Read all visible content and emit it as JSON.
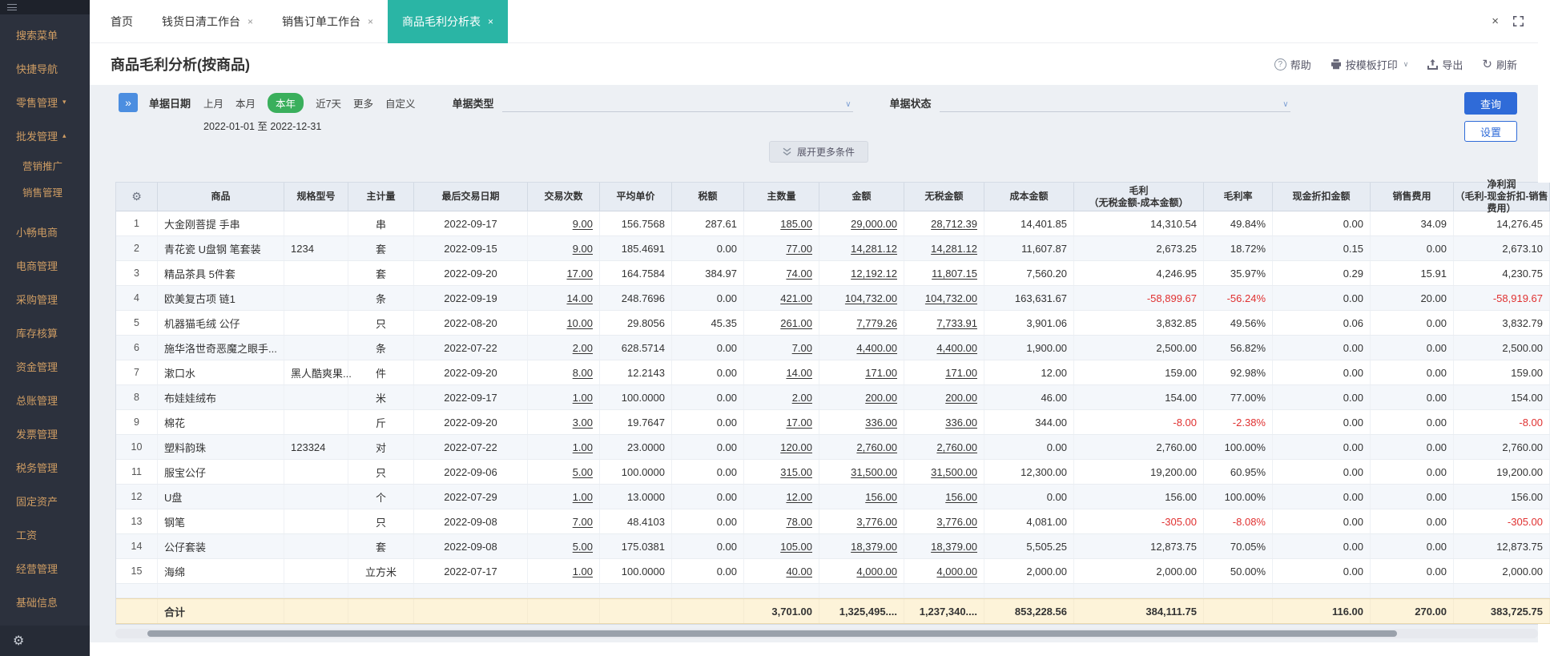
{
  "colors": {
    "accent-teal": "#2ab5a5",
    "accent-green": "#3aaf5c",
    "primary-blue": "#2f6bd8",
    "negative-red": "#e03131",
    "sidebar-bg": "#2c313d",
    "sidebar-text": "#cf9d63",
    "totals-bg": "#fdf3d9",
    "header-bg": "#e7ecf3"
  },
  "sidebar": {
    "items": [
      {
        "label": "搜索菜单",
        "type": "item"
      },
      {
        "label": "快捷导航",
        "type": "item"
      },
      {
        "label": "零售管理",
        "type": "group",
        "chevron": "down"
      },
      {
        "label": "批发管理",
        "type": "group",
        "chevron": "up",
        "active": true
      },
      {
        "label": "营销推广",
        "type": "sub"
      },
      {
        "label": "销售管理",
        "type": "sub"
      },
      {
        "label": "小畅电商",
        "type": "item"
      },
      {
        "label": "电商管理",
        "type": "item"
      },
      {
        "label": "采购管理",
        "type": "item"
      },
      {
        "label": "库存核算",
        "type": "item"
      },
      {
        "label": "资金管理",
        "type": "item"
      },
      {
        "label": "总账管理",
        "type": "item"
      },
      {
        "label": "发票管理",
        "type": "item"
      },
      {
        "label": "税务管理",
        "type": "item"
      },
      {
        "label": "固定资产",
        "type": "item"
      },
      {
        "label": "工资",
        "type": "item"
      },
      {
        "label": "经营管理",
        "type": "item"
      },
      {
        "label": "基础信息",
        "type": "item"
      }
    ]
  },
  "tabs": {
    "items": [
      {
        "label": "首页",
        "closable": false,
        "active": false
      },
      {
        "label": "钱货日清工作台",
        "closable": true,
        "active": false
      },
      {
        "label": "销售订单工作台",
        "closable": true,
        "active": false
      },
      {
        "label": "商品毛利分析表",
        "closable": true,
        "active": true
      }
    ]
  },
  "page": {
    "title": "商品毛利分析(按商品)",
    "toolbar": {
      "help": "帮助",
      "print": "按模板打印",
      "export": "导出",
      "refresh": "刷新"
    }
  },
  "filters": {
    "date_label": "单据日期",
    "date_options": [
      {
        "label": "上月",
        "active": false
      },
      {
        "label": "本月",
        "active": false
      },
      {
        "label": "本年",
        "active": true
      },
      {
        "label": "近7天",
        "active": false
      },
      {
        "label": "更多",
        "active": false
      },
      {
        "label": "自定义",
        "active": false
      }
    ],
    "date_range": "2022-01-01 至 2022-12-31",
    "doc_type_label": "单据类型",
    "doc_status_label": "单据状态",
    "query_button": "查询",
    "settings_button": "设置",
    "expand_more": "展开更多条件"
  },
  "table": {
    "columns": [
      "商品",
      "规格型号",
      "主计量",
      "最后交易日期",
      "交易次数",
      "平均单价",
      "税额",
      "主数量",
      "金额",
      "无税金额",
      "成本金额",
      "毛利\n（无税金额-成本金额）",
      "毛利率",
      "现金折扣金额",
      "销售费用",
      "净利润\n（毛利-现金折扣-销售费用）"
    ],
    "rows": [
      [
        "大金刚菩提 手串",
        "",
        "串",
        "2022-09-17",
        "9.00",
        "156.7568",
        "287.61",
        "185.00",
        "29,000.00",
        "28,712.39",
        "14,401.85",
        "14,310.54",
        "49.84%",
        "0.00",
        "34.09",
        "14,276.45"
      ],
      [
        "青花瓷 U盘钢 笔套装",
        "1234",
        "套",
        "2022-09-15",
        "9.00",
        "185.4691",
        "0.00",
        "77.00",
        "14,281.12",
        "14,281.12",
        "11,607.87",
        "2,673.25",
        "18.72%",
        "0.15",
        "0.00",
        "2,673.10"
      ],
      [
        "精品茶具 5件套",
        "",
        "套",
        "2022-09-20",
        "17.00",
        "164.7584",
        "384.97",
        "74.00",
        "12,192.12",
        "11,807.15",
        "7,560.20",
        "4,246.95",
        "35.97%",
        "0.29",
        "15.91",
        "4,230.75"
      ],
      [
        "欧美复古项 链1",
        "",
        "条",
        "2022-09-19",
        "14.00",
        "248.7696",
        "0.00",
        "421.00",
        "104,732.00",
        "104,732.00",
        "163,631.67",
        "-58,899.67",
        "-56.24%",
        "0.00",
        "20.00",
        "-58,919.67"
      ],
      [
        "机器猫毛绒 公仔",
        "",
        "只",
        "2022-08-20",
        "10.00",
        "29.8056",
        "45.35",
        "261.00",
        "7,779.26",
        "7,733.91",
        "3,901.06",
        "3,832.85",
        "49.56%",
        "0.06",
        "0.00",
        "3,832.79"
      ],
      [
        "施华洛世奇恶魔之眼手...",
        "",
        "条",
        "2022-07-22",
        "2.00",
        "628.5714",
        "0.00",
        "7.00",
        "4,400.00",
        "4,400.00",
        "1,900.00",
        "2,500.00",
        "56.82%",
        "0.00",
        "0.00",
        "2,500.00"
      ],
      [
        "漱口水",
        "黑人酷爽果...",
        "件",
        "2022-09-20",
        "8.00",
        "12.2143",
        "0.00",
        "14.00",
        "171.00",
        "171.00",
        "12.00",
        "159.00",
        "92.98%",
        "0.00",
        "0.00",
        "159.00"
      ],
      [
        "布娃娃绒布",
        "",
        "米",
        "2022-09-17",
        "1.00",
        "100.0000",
        "0.00",
        "2.00",
        "200.00",
        "200.00",
        "46.00",
        "154.00",
        "77.00%",
        "0.00",
        "0.00",
        "154.00"
      ],
      [
        "棉花",
        "",
        "斤",
        "2022-09-20",
        "3.00",
        "19.7647",
        "0.00",
        "17.00",
        "336.00",
        "336.00",
        "344.00",
        "-8.00",
        "-2.38%",
        "0.00",
        "0.00",
        "-8.00"
      ],
      [
        "塑料韵珠",
        "123324",
        "对",
        "2022-07-22",
        "1.00",
        "23.0000",
        "0.00",
        "120.00",
        "2,760.00",
        "2,760.00",
        "0.00",
        "2,760.00",
        "100.00%",
        "0.00",
        "0.00",
        "2,760.00"
      ],
      [
        "服宝公仔",
        "",
        "只",
        "2022-09-06",
        "5.00",
        "100.0000",
        "0.00",
        "315.00",
        "31,500.00",
        "31,500.00",
        "12,300.00",
        "19,200.00",
        "60.95%",
        "0.00",
        "0.00",
        "19,200.00"
      ],
      [
        "U盘",
        "",
        "个",
        "2022-07-29",
        "1.00",
        "13.0000",
        "0.00",
        "12.00",
        "156.00",
        "156.00",
        "0.00",
        "156.00",
        "100.00%",
        "0.00",
        "0.00",
        "156.00"
      ],
      [
        "钢笔",
        "",
        "只",
        "2022-09-08",
        "7.00",
        "48.4103",
        "0.00",
        "78.00",
        "3,776.00",
        "3,776.00",
        "4,081.00",
        "-305.00",
        "-8.08%",
        "0.00",
        "0.00",
        "-305.00"
      ],
      [
        "公仔套装",
        "",
        "套",
        "2022-09-08",
        "5.00",
        "175.0381",
        "0.00",
        "105.00",
        "18,379.00",
        "18,379.00",
        "5,505.25",
        "12,873.75",
        "70.05%",
        "0.00",
        "0.00",
        "12,873.75"
      ],
      [
        "海绵",
        "",
        "立方米",
        "2022-07-17",
        "1.00",
        "100.0000",
        "0.00",
        "40.00",
        "4,000.00",
        "4,000.00",
        "2,000.00",
        "2,000.00",
        "50.00%",
        "0.00",
        "0.00",
        "2,000.00"
      ]
    ],
    "totals": [
      "合计",
      "",
      "",
      "",
      "",
      "",
      "",
      "3,701.00",
      "1,325,495....",
      "1,237,340....",
      "853,228.56",
      "384,111.75",
      "",
      "116.00",
      "270.00",
      "383,725.75"
    ]
  }
}
